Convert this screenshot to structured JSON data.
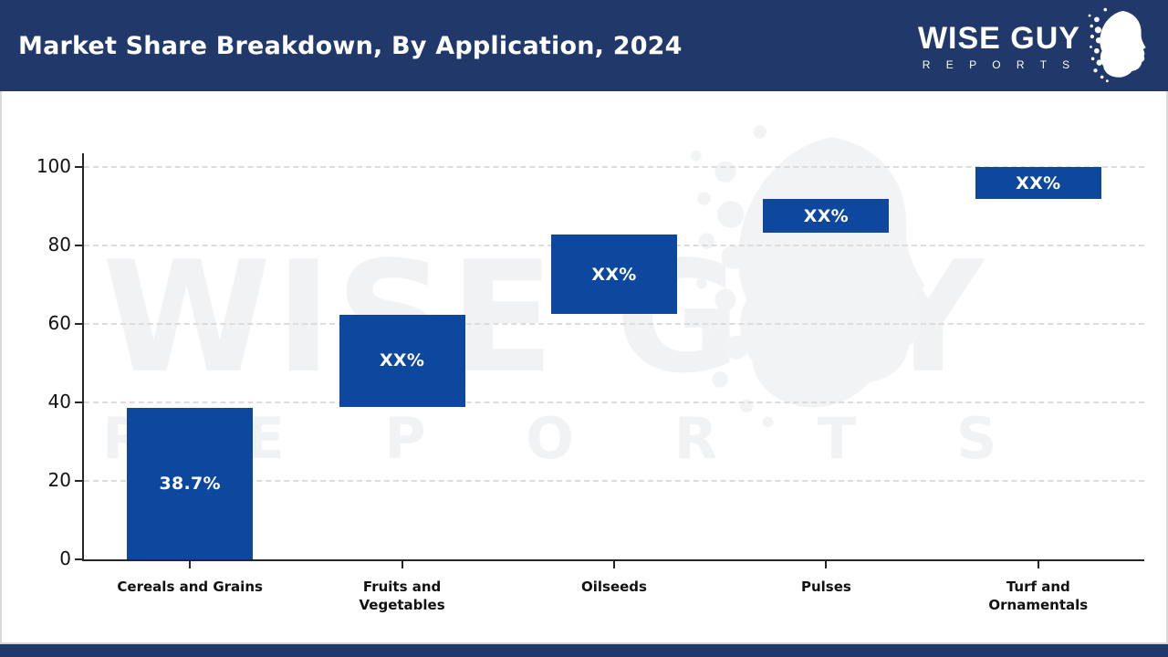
{
  "header": {
    "title": "Market Share Breakdown, By Application, 2024",
    "logo": {
      "wordmark": "WISE GUY",
      "sub": "R E P O R T S"
    }
  },
  "watermark": {
    "line1": "WISE GUY",
    "line2": "R E P O R T S"
  },
  "icons": {
    "logo_face": "wiseguy-head-profile-icon"
  },
  "colors": {
    "header_bg": "#21386B",
    "footer_bg": "#21386B",
    "bar": "#0D479E",
    "bar_label": "#FFFFFF",
    "grid": "#DCDCDC",
    "axis": "#262626",
    "watermark": "#F1F2F4",
    "border": "#D9D9D9"
  },
  "chart_data": {
    "type": "bar",
    "subtype": "waterfall",
    "title": "Market Share Breakdown, By Application, 2024",
    "xlabel": "",
    "ylabel": "",
    "categories": [
      "Cereals and Grains",
      "Fruits and\nVegetables",
      "Oilseeds",
      "Pulses",
      "Turf and\nOrnamentals"
    ],
    "segments": [
      {
        "category": "Cereals and Grains",
        "label": "38.7%",
        "start": 0,
        "end": 38.7
      },
      {
        "category": "Fruits and Vegetables",
        "label": "XX%",
        "start": 38.9,
        "end": 62.4
      },
      {
        "category": "Oilseeds",
        "label": "XX%",
        "start": 62.6,
        "end": 82.7
      },
      {
        "category": "Pulses",
        "label": "XX%",
        "start": 83.2,
        "end": 91.8
      },
      {
        "category": "Turf and Ornamentals",
        "label": "XX%",
        "start": 91.8,
        "end": 100
      }
    ],
    "ylim": [
      0,
      100
    ],
    "yticks": [
      0,
      20,
      40,
      60,
      80,
      100
    ],
    "grid": "horizontal-dashed",
    "legend": "none"
  }
}
